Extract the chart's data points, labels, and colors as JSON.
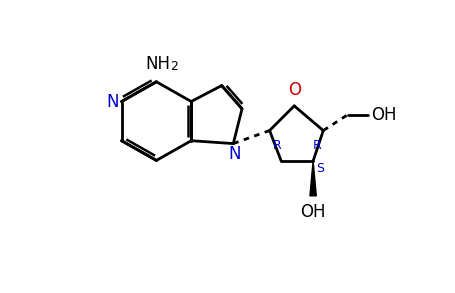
{
  "bg_color": "#ffffff",
  "line_color": "#000000",
  "label_color_N": "#0000cd",
  "label_color_O": "#cc0000",
  "label_color_black": "#000000",
  "line_width": 2.0,
  "font_size": 11,
  "fig_width": 4.55,
  "fig_height": 2.93,
  "dpi": 100,
  "xlim": [
    0,
    10
  ],
  "ylim": [
    0,
    10
  ]
}
